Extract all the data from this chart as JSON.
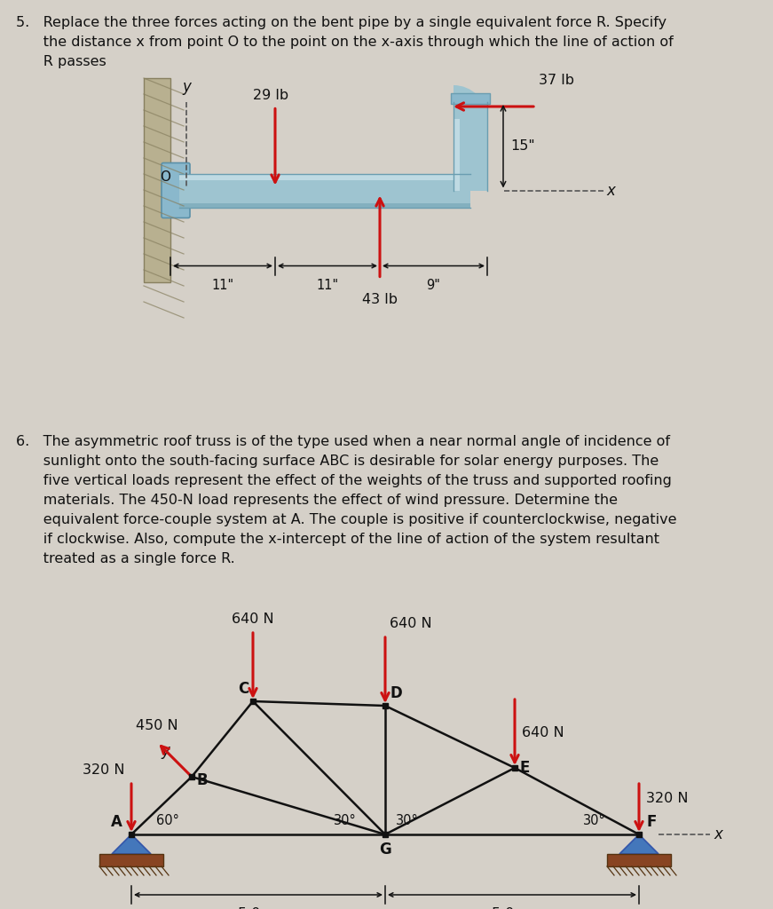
{
  "bg_color": "#d5d0c8",
  "text_color": "#111111",
  "pipe_color": "#9ec4d0",
  "pipe_highlight": "#c8e0e8",
  "pipe_shadow": "#6a9db0",
  "wall_color": "#b8b090",
  "wall_hatch": "#888060",
  "force_color": "#cc1111",
  "dim_color": "#222222",
  "truss_color": "#111111",
  "support_blue": "#4477bb",
  "support_brown": "#884422",
  "p5_text": [
    "5.   Replace the three forces acting on the bent pipe by a single equivalent force R. Specify",
    "      the distance x from point O to the point on the x-axis through which the line of action of",
    "      R passes"
  ],
  "p6_text": [
    "6.   The asymmetric roof truss is of the type used when a near normal angle of incidence of",
    "      sunlight onto the south-facing surface ABC is desirable for solar energy purposes. The",
    "      five vertical loads represent the effect of the weights of the truss and supported roofing",
    "      materials. The 450-N load represents the effect of wind pressure. Determine the",
    "      equivalent force-couple system at A. The couple is positive if counterclockwise, negative",
    "      if clockwise. Also, compute the x-intercept of the line of action of the system resultant",
    "      treated as a single force R."
  ]
}
